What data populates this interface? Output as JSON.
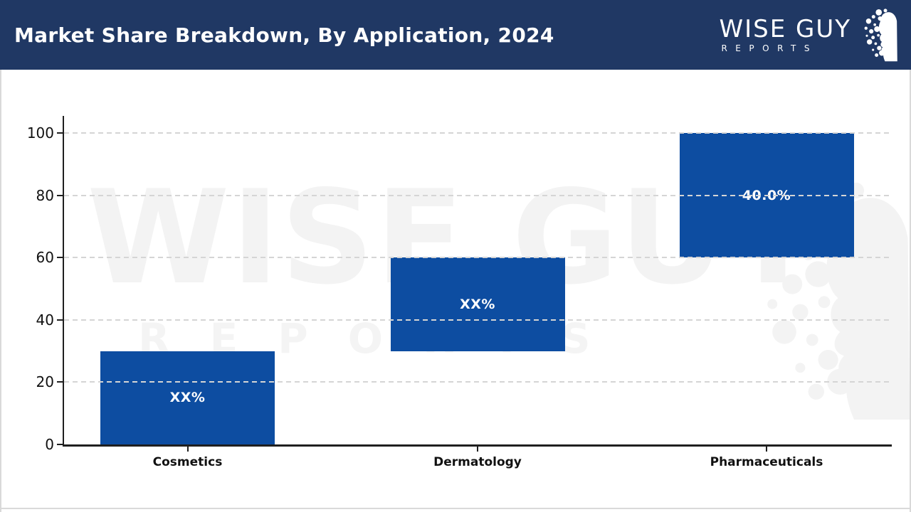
{
  "header": {
    "title": "Market Share Breakdown, By Application, 2024",
    "logo": {
      "line1": "WISE GUY",
      "line2": "REPORTS"
    }
  },
  "watermark": {
    "line1": "WISE GUY",
    "line2": "REPORTS"
  },
  "chart_data": {
    "type": "bar",
    "subtype": "waterfall",
    "title": "Market Share Breakdown, By Application, 2024",
    "categories": [
      "Cosmetics",
      "Dermatology",
      "Pharmaceuticals"
    ],
    "bars": [
      {
        "category": "Cosmetics",
        "start": 0,
        "end": 30,
        "label": "XX%"
      },
      {
        "category": "Dermatology",
        "start": 30,
        "end": 60,
        "label": "XX%"
      },
      {
        "category": "Pharmaceuticals",
        "start": 60,
        "end": 100,
        "label": "40.0%"
      }
    ],
    "y_ticks": [
      0,
      20,
      40,
      60,
      80,
      100
    ],
    "ylim": [
      0,
      105.5
    ],
    "xlabel": "",
    "ylabel": "",
    "grid": "dashed-horizontal",
    "legend": "none"
  },
  "colors": {
    "header_bg": "#203864",
    "bar": "#0d4da1",
    "bar_label": "#ffffff",
    "grid": "#d5d5d5",
    "axis": "#1f1f1f",
    "watermark": "#f3f3f3",
    "edge": "#d9d9d9"
  }
}
